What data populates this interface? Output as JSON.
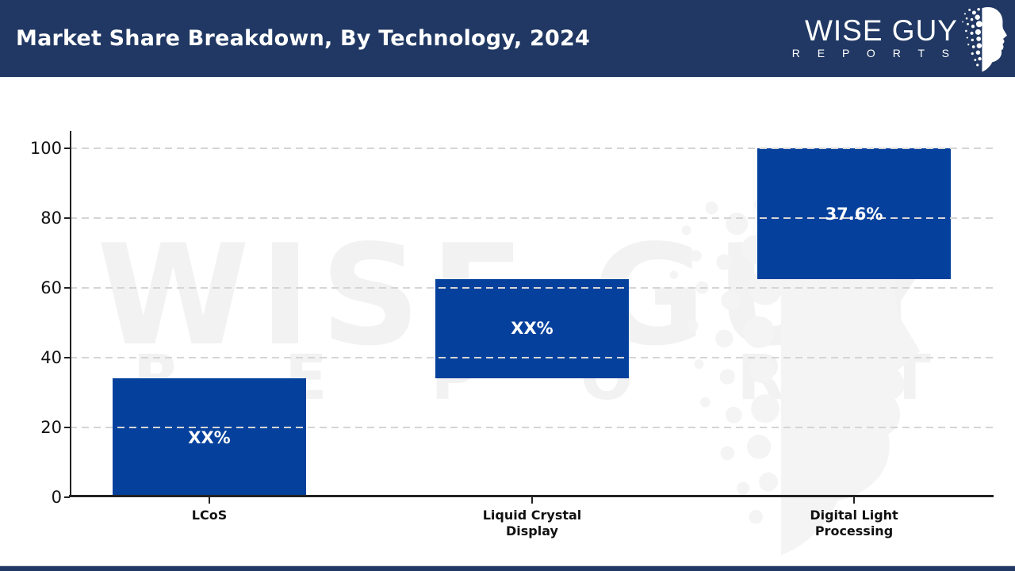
{
  "header": {
    "title": "Market Share Breakdown, By Technology, 2024",
    "logo": {
      "line1": "WISE GUY",
      "line2": "R E P O R T S"
    }
  },
  "watermark": {
    "line1": "WISE GUY",
    "line2": "R E P O R T S"
  },
  "colors": {
    "header_bg": "#203863",
    "header_text": "#ffffff",
    "bar_fill": "#05419c",
    "bar_label": "#ffffff",
    "grid_line": "#d5d5d5",
    "axis_line": "#222222",
    "tick_text": "#111111",
    "watermark": "#f2f2f2",
    "watermark_face": "#f4f4f4"
  },
  "chart_data": {
    "type": "bar",
    "subtype": "waterfall",
    "title": "Market Share Breakdown, By Technology, 2024",
    "categories": [
      "LCoS",
      "Liquid Crystal Display",
      "Digital Light Processing"
    ],
    "category_lines": [
      [
        "LCoS"
      ],
      [
        "Liquid Crystal",
        "Display"
      ],
      [
        "Digital Light",
        "Processing"
      ]
    ],
    "segments": [
      {
        "category": "LCoS",
        "start": 0,
        "end": 34.2,
        "value": 34.2,
        "label": "XX%"
      },
      {
        "category": "Liquid Crystal Display",
        "start": 34.2,
        "end": 62.4,
        "value": 28.2,
        "label": "XX%"
      },
      {
        "category": "Digital Light Processing",
        "start": 62.4,
        "end": 100,
        "value": 37.6,
        "label": "37.6%"
      }
    ],
    "y_ticks": [
      0,
      20,
      40,
      60,
      80,
      100
    ],
    "ylim": [
      0,
      100
    ],
    "xlabel": "",
    "ylabel": "",
    "grid": "horizontal-dashed",
    "legend": "none"
  }
}
